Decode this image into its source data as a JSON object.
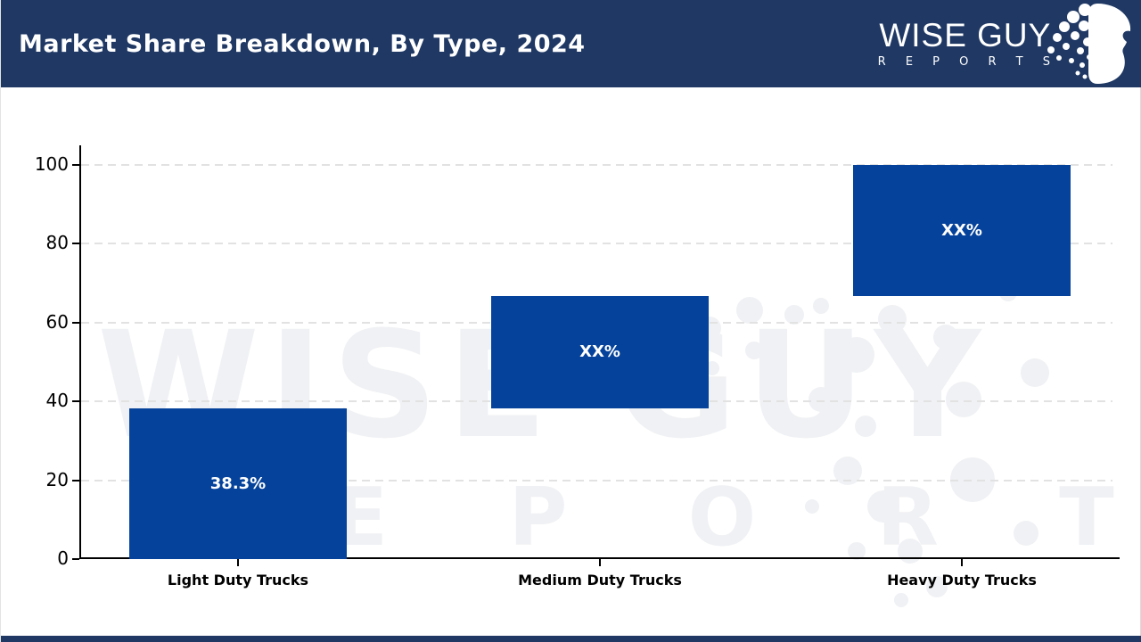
{
  "header": {
    "title": "Market Share Breakdown, By Type, 2024",
    "logo": {
      "name": "WISE GUY",
      "sub": "R E P O R T S"
    }
  },
  "watermark": {
    "line1": "WISE GUY",
    "line2": "R E P O R T S"
  },
  "footer": {
    "present": true
  },
  "colors": {
    "header_bg": "#1f3864",
    "bar_fill": "#05429b",
    "bar_label_text": "#ffffff",
    "gridline": "#e2e2e2",
    "axis": "#000000",
    "watermark": "#f0f1f4"
  },
  "chart_data": {
    "type": "bar",
    "subtype": "waterfall-stacked-percentage",
    "title": "Market Share Breakdown, By Type, 2024",
    "categories": [
      "Light Duty Trucks",
      "Medium Duty Trucks",
      "Heavy Duty Trucks"
    ],
    "segments": [
      {
        "category": "Light Duty Trucks",
        "start": 0,
        "end": 38.3,
        "label": "38.3%"
      },
      {
        "category": "Medium Duty Trucks",
        "start": 38.3,
        "end": 66.7,
        "label": "XX%"
      },
      {
        "category": "Heavy Duty Trucks",
        "start": 66.7,
        "end": 100,
        "label": "XX%"
      }
    ],
    "xlabel": "",
    "ylabel": "",
    "yticks": [
      0,
      20,
      40,
      60,
      80,
      100
    ],
    "ylim": [
      0,
      105
    ],
    "grid": "horizontal-dashed",
    "legend": "none"
  }
}
